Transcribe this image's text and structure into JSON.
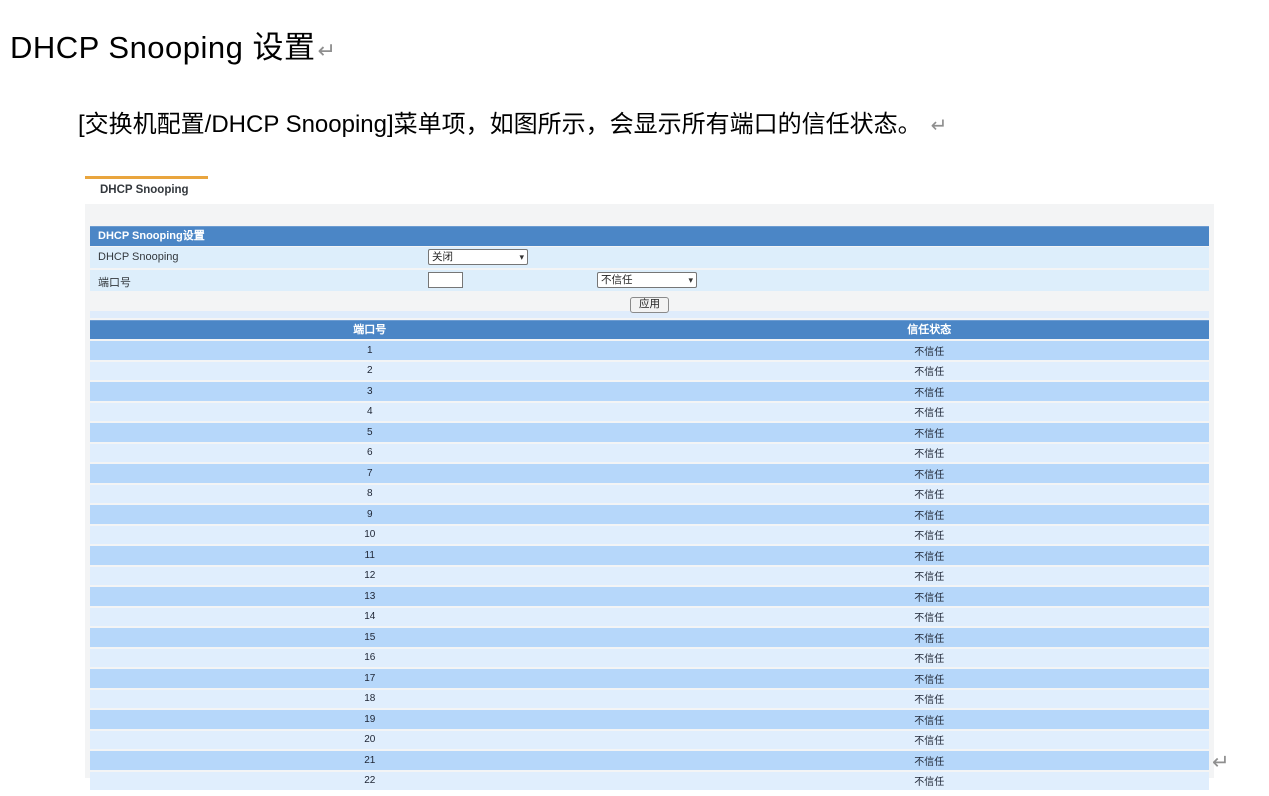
{
  "document": {
    "title": "DHCP Snooping 设置",
    "paragraph": "[交换机配置/DHCP Snooping]菜单项，如图所示，会显示所有端口的信任状态。",
    "return_mark": "↵"
  },
  "icons": {
    "chevron_down": "▾"
  },
  "screenshot": {
    "tab_label": "DHCP Snooping",
    "section_title": "DHCP Snooping设置",
    "form": {
      "dhcp_snooping_label": "DHCP Snooping",
      "dhcp_snooping_value": "关闭",
      "port_label": "端口号",
      "port_input_value": "",
      "trust_value": "不信任",
      "apply_label": "应用"
    },
    "table": {
      "columns": [
        "端口号",
        "信任状态"
      ],
      "rows": [
        {
          "port": "1",
          "status": "不信任"
        },
        {
          "port": "2",
          "status": "不信任"
        },
        {
          "port": "3",
          "status": "不信任"
        },
        {
          "port": "4",
          "status": "不信任"
        },
        {
          "port": "5",
          "status": "不信任"
        },
        {
          "port": "6",
          "status": "不信任"
        },
        {
          "port": "7",
          "status": "不信任"
        },
        {
          "port": "8",
          "status": "不信任"
        },
        {
          "port": "9",
          "status": "不信任"
        },
        {
          "port": "10",
          "status": "不信任"
        },
        {
          "port": "11",
          "status": "不信任"
        },
        {
          "port": "12",
          "status": "不信任"
        },
        {
          "port": "13",
          "status": "不信任"
        },
        {
          "port": "14",
          "status": "不信任"
        },
        {
          "port": "15",
          "status": "不信任"
        },
        {
          "port": "16",
          "status": "不信任"
        },
        {
          "port": "17",
          "status": "不信任"
        },
        {
          "port": "18",
          "status": "不信任"
        },
        {
          "port": "19",
          "status": "不信任"
        },
        {
          "port": "20",
          "status": "不信任"
        },
        {
          "port": "21",
          "status": "不信任"
        },
        {
          "port": "22",
          "status": "不信任"
        }
      ]
    },
    "colors": {
      "header_blue": "#4b86c6",
      "row_odd_blue": "#b6d7fa",
      "row_even_blue": "#e0eefd",
      "form_row_blue": "#ddeefb",
      "tab_accent_orange": "#e9a53e",
      "page_gray": "#f3f4f5"
    }
  }
}
